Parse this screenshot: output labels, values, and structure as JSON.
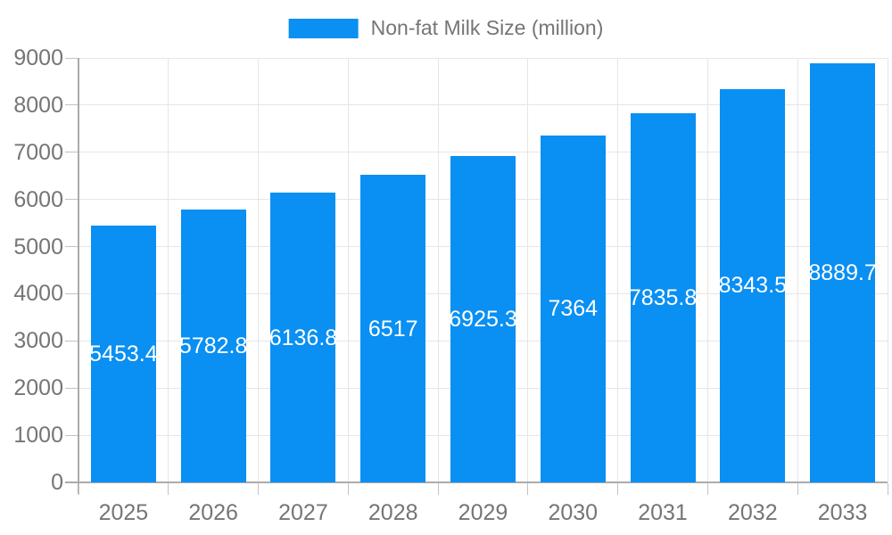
{
  "legend": {
    "label": "Non-fat Milk Size (million)"
  },
  "chart_data": {
    "type": "bar",
    "title": "",
    "xlabel": "",
    "ylabel": "",
    "categories": [
      "2025",
      "2026",
      "2027",
      "2028",
      "2029",
      "2030",
      "2031",
      "2032",
      "2033"
    ],
    "series": [
      {
        "name": "Non-fat Milk Size (million)",
        "values": [
          5453.4,
          5782.8,
          6136.8,
          6517,
          6925.3,
          7364,
          7835.8,
          8343.5,
          8889.7
        ],
        "value_labels": [
          "5453.4",
          "5782.8",
          "6136.8",
          "6517",
          "6925.3",
          "7364",
          "7835.8",
          "8343.5",
          "8889.7"
        ]
      }
    ],
    "ylim": [
      0,
      9000
    ],
    "yticks": [
      0,
      1000,
      2000,
      3000,
      4000,
      5000,
      6000,
      7000,
      8000,
      9000
    ],
    "grid": true,
    "legend_position": "top",
    "colors": {
      "bar": "#0a8ff2",
      "bar_label": "#ffffff",
      "axis_text": "#757575",
      "grid_line": "#e6e6e6",
      "axis_line": "#ababab",
      "tick_line": "#c2c2c2",
      "background": "#ffffff"
    }
  }
}
